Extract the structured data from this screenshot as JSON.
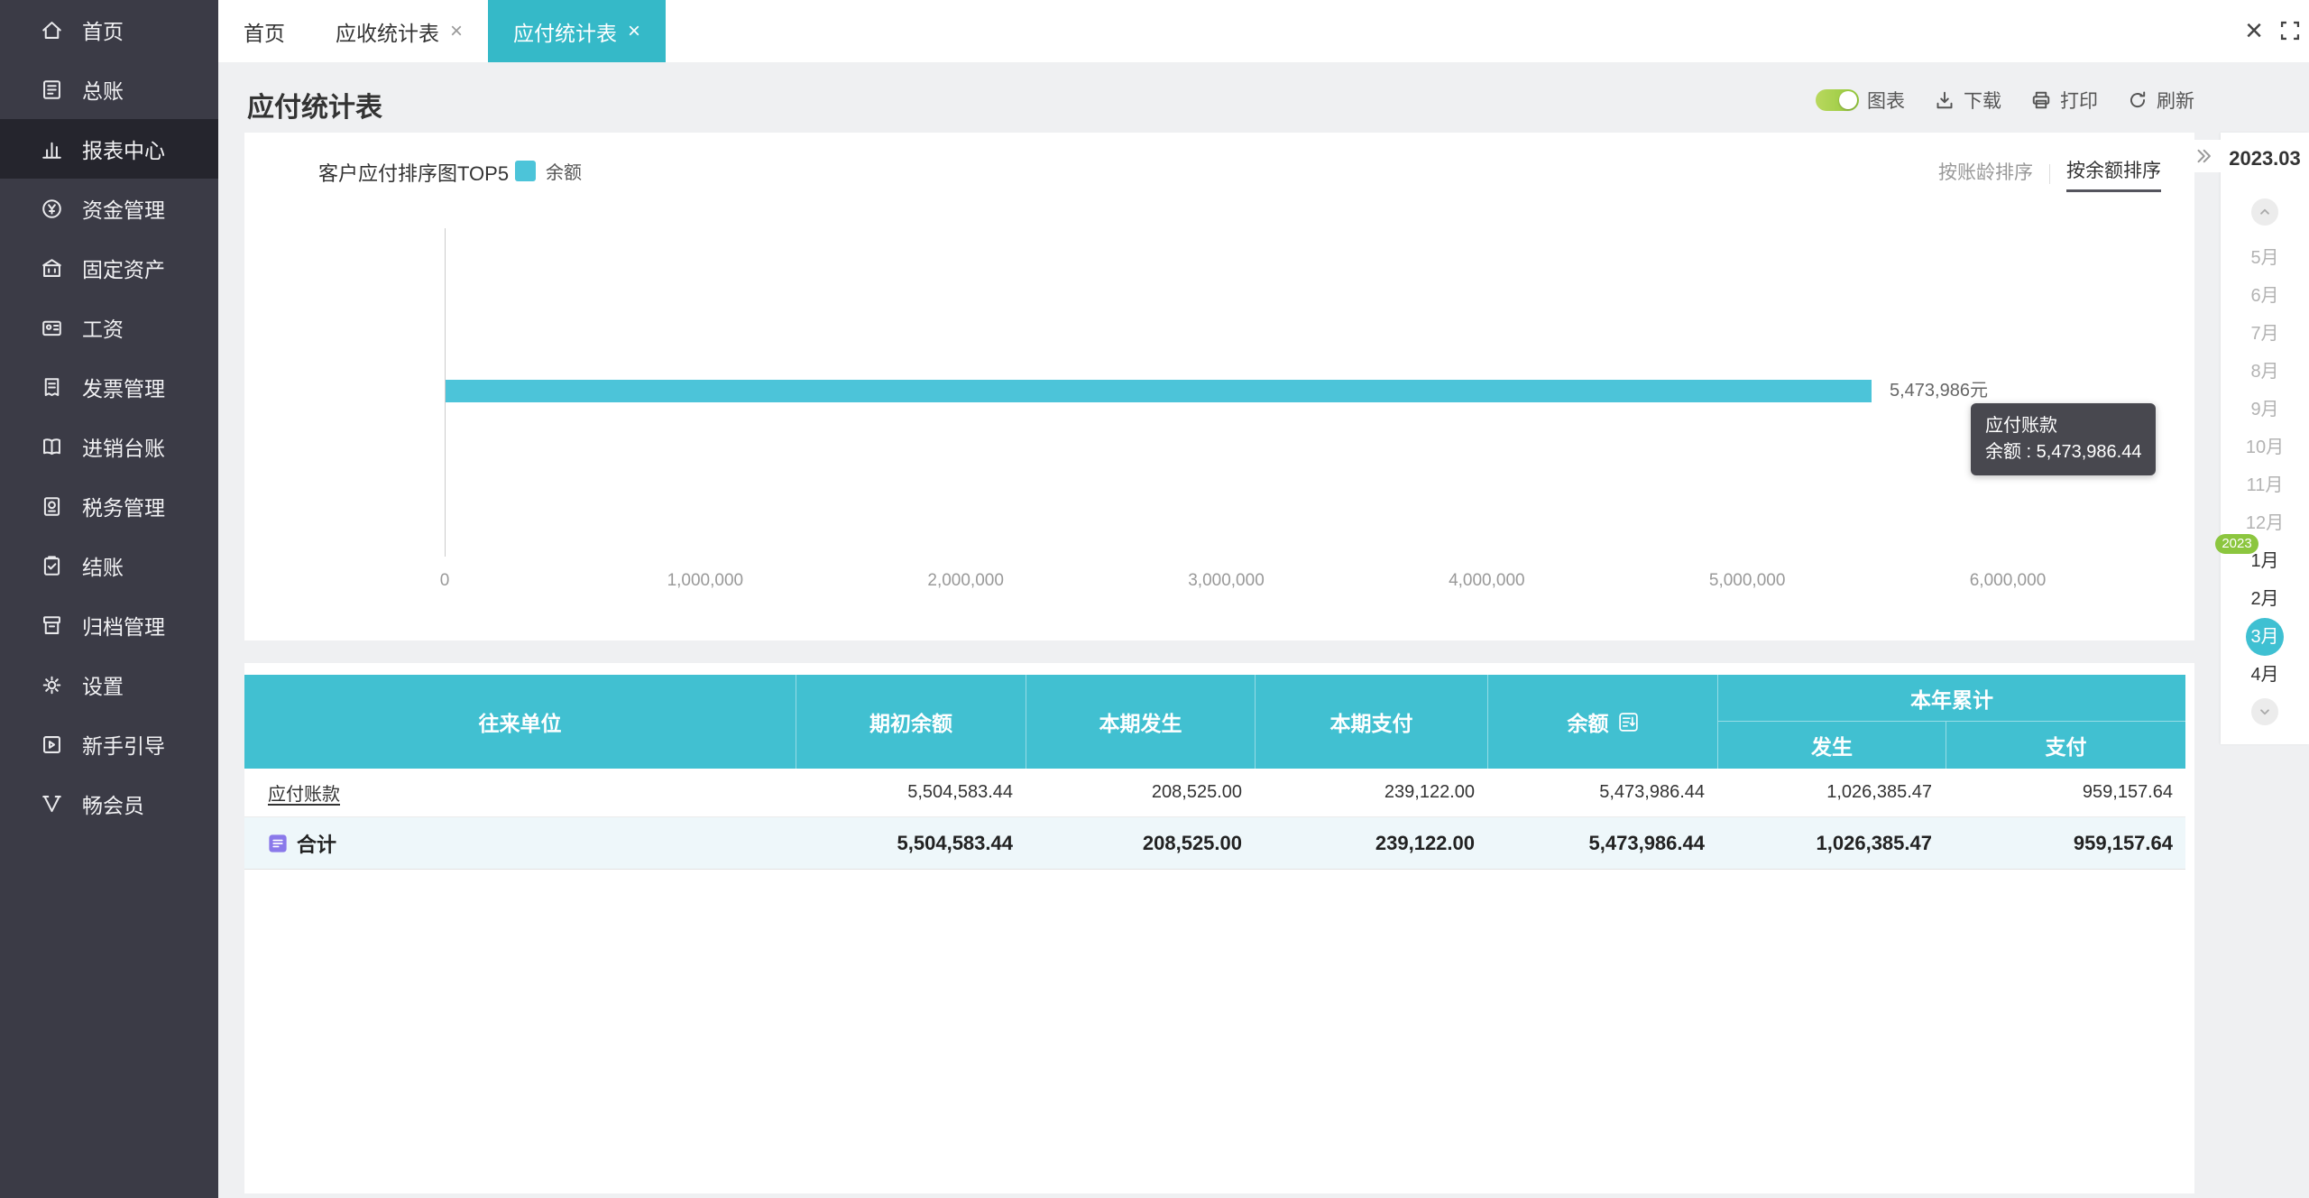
{
  "sidebar": {
    "items": [
      {
        "label": "首页"
      },
      {
        "label": "总账"
      },
      {
        "label": "报表中心"
      },
      {
        "label": "资金管理"
      },
      {
        "label": "固定资产"
      },
      {
        "label": "工资"
      },
      {
        "label": "发票管理"
      },
      {
        "label": "进销台账"
      },
      {
        "label": "税务管理"
      },
      {
        "label": "结账"
      },
      {
        "label": "归档管理"
      },
      {
        "label": "设置"
      },
      {
        "label": "新手引导"
      },
      {
        "label": "畅会员"
      }
    ]
  },
  "tabbar": {
    "tabs": [
      {
        "label": "首页",
        "close": ""
      },
      {
        "label": "应收统计表",
        "close": "×"
      },
      {
        "label": "应付统计表",
        "close": "×"
      }
    ]
  },
  "window_controls": {
    "close": "×"
  },
  "toolbar": {
    "title": "应付统计表",
    "chart_toggle": "图表",
    "download": "下载",
    "print": "打印",
    "refresh": "刷新"
  },
  "chart": {
    "title": "客户应付排序图TOP5",
    "legend": "余额",
    "sort_age": "按账龄排序",
    "sort_balance": "按余额排序",
    "bar_label": "应付账款",
    "value_label": "5,473,986元",
    "tooltip_title": "应付账款",
    "tooltip_value": "余额 : 5,473,986.44"
  },
  "chart_data": {
    "type": "bar",
    "orientation": "horizontal",
    "title": "客户应付排序图TOP5",
    "categories": [
      "应付账款"
    ],
    "series": [
      {
        "name": "余额",
        "values": [
          5473986.44
        ]
      }
    ],
    "xlim": [
      0,
      6000000
    ],
    "x_ticks": [
      "0",
      "1,000,000",
      "2,000,000",
      "3,000,000",
      "4,000,000",
      "5,000,000",
      "6,000,000"
    ],
    "bar_color": "#4cc4d9",
    "legend_position": "top",
    "grid": false
  },
  "table": {
    "col_unit": "往来单位",
    "col_opening": "期初余额",
    "col_incurred": "本期发生",
    "col_paid": "本期支付",
    "col_balance": "余额",
    "col_ytd": "本年累计",
    "col_ytd_incurred": "发生",
    "col_ytd_paid": "支付",
    "rows": [
      {
        "name": "应付账款",
        "opening": "5,504,583.44",
        "incurred": "208,525.00",
        "paid": "239,122.00",
        "balance": "5,473,986.44",
        "ytd_incurred": "1,026,385.47",
        "ytd_paid": "959,157.64"
      }
    ],
    "total": {
      "label": "合计",
      "opening": "5,504,583.44",
      "incurred": "208,525.00",
      "paid": "239,122.00",
      "balance": "5,473,986.44",
      "ytd_incurred": "1,026,385.47",
      "ytd_paid": "959,157.64"
    }
  },
  "month_panel": {
    "current": "2023.03",
    "year_badge": "2023",
    "months": [
      {
        "label": "5月"
      },
      {
        "label": "6月"
      },
      {
        "label": "7月"
      },
      {
        "label": "8月"
      },
      {
        "label": "9月"
      },
      {
        "label": "10月"
      },
      {
        "label": "11月"
      },
      {
        "label": "12月"
      },
      {
        "label": "1月"
      },
      {
        "label": "2月"
      },
      {
        "label": "3月"
      },
      {
        "label": "4月"
      }
    ]
  },
  "colors": {
    "accent_cyan": "#35b9c8",
    "table_header": "#41c0d1",
    "bar": "#4cc4d9",
    "toggle_green": "#93c83b",
    "sidebar_bg": "#3b3b46"
  }
}
